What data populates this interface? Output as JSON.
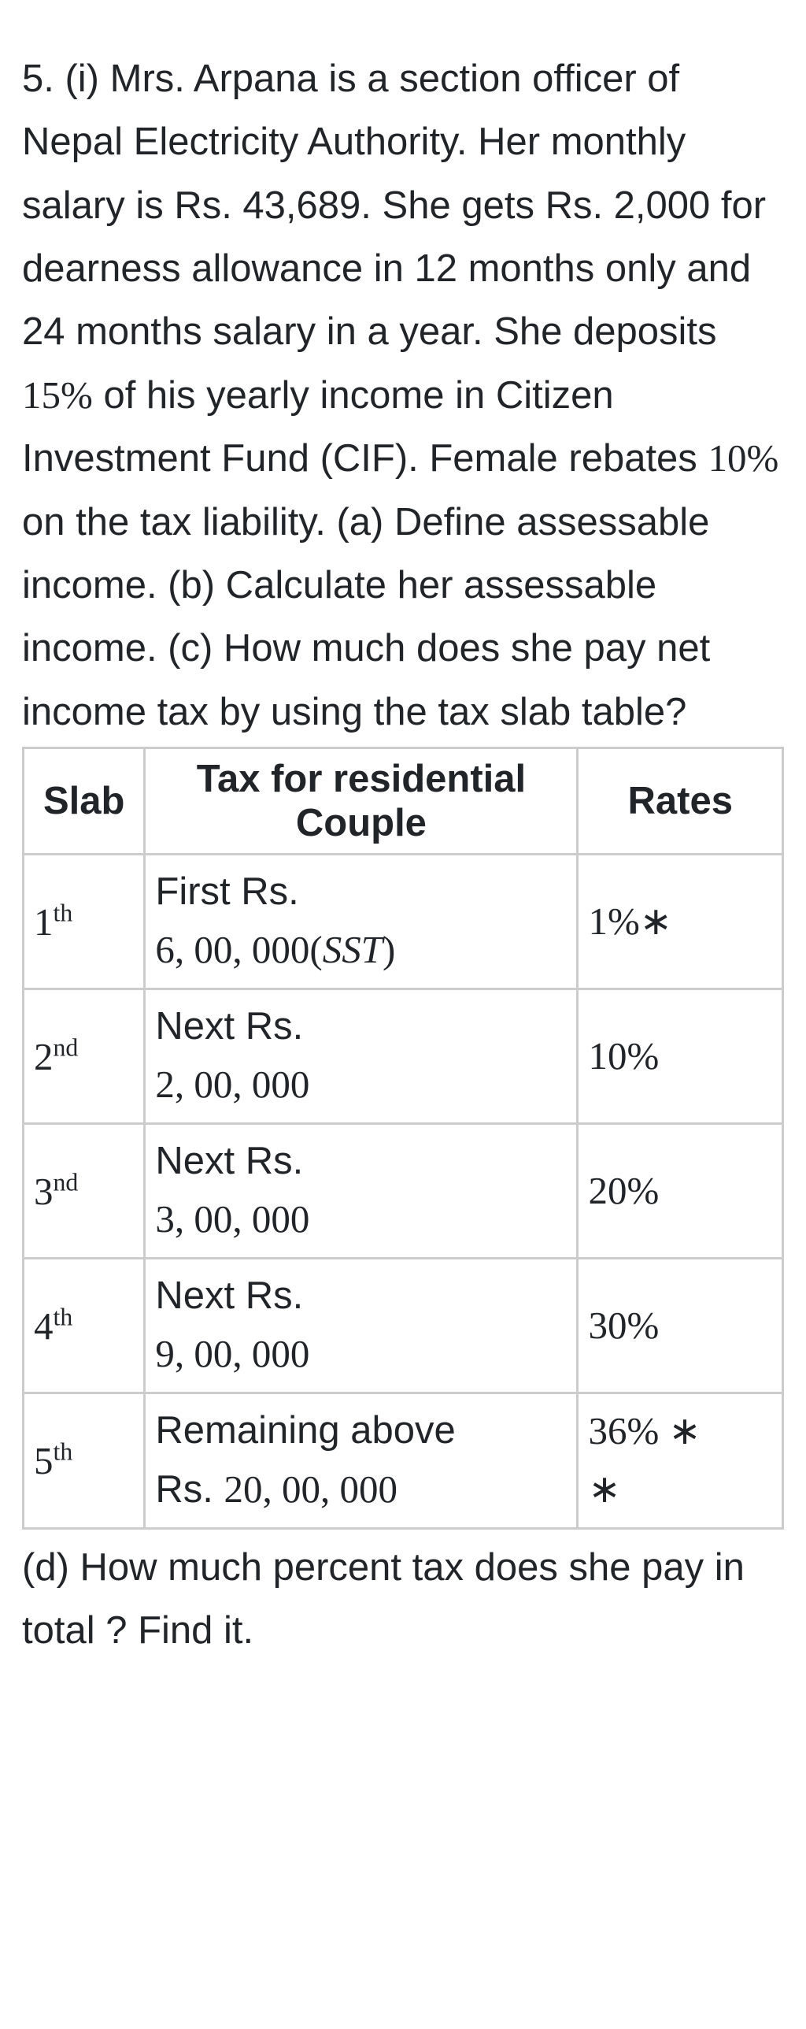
{
  "question": {
    "number": "5. (i)",
    "body_html": "Mrs. Arpana is a section officer of Nepal Electricity Authority. Her monthly salary is Rs. 43,689. She gets Rs. 2,000 for dearness allowance in 12 months only and 24 months salary in a year. She deposits <span class=\"math\">15%</span> of his yearly income in Citizen Investment Fund (CIF). Female rebates <span class=\"math\">10%</span> on the tax liability. (a) Define assessable income. (b) Calculate her assessable income. (c) How much does she pay net income tax by using the tax slab table?"
  },
  "table": {
    "headers": {
      "slab": "Slab",
      "desc": "Tax for residential Couple",
      "rate": "Rates"
    },
    "rows": [
      {
        "slab_html": "<span class=\"math\">1<sup>th</sup></span>",
        "desc_html": "First Rs.<br><span class=\"math\">6, 00, 000(<i>SST</i>)</span>",
        "rate_html": "<span class=\"math\">1%∗</span>"
      },
      {
        "slab_html": "<span class=\"math\">2<sup>nd</sup></span>",
        "desc_html": "Next Rs.<br><span class=\"math\">2, 00, 000</span>",
        "rate_html": "<span class=\"math\">10%</span>"
      },
      {
        "slab_html": "<span class=\"math\">3<sup>nd</sup></span>",
        "desc_html": "Next Rs.<br><span class=\"math\">3, 00, 000</span>",
        "rate_html": "<span class=\"math\">20%</span>"
      },
      {
        "slab_html": "<span class=\"math\">4<sup>th</sup></span>",
        "desc_html": "Next Rs.<br><span class=\"math\">9, 00, 000</span>",
        "rate_html": "<span class=\"math\">30%</span>"
      },
      {
        "slab_html": "<span class=\"math\">5<sup>th</sup></span>",
        "desc_html": "Remaining above<br>Rs. <span class=\"math\">20, 00, 000</span>",
        "rate_html": "<span class=\"math\">36% ∗<br>∗</span>"
      }
    ]
  },
  "footer": {
    "text_html": "(d) How much percent tax does she pay in total ? Find it."
  },
  "styles": {
    "background_color": "#ffffff",
    "text_color": "#212529",
    "border_color": "#cccccc",
    "body_fontsize": 49,
    "math_font": "Times New Roman"
  }
}
